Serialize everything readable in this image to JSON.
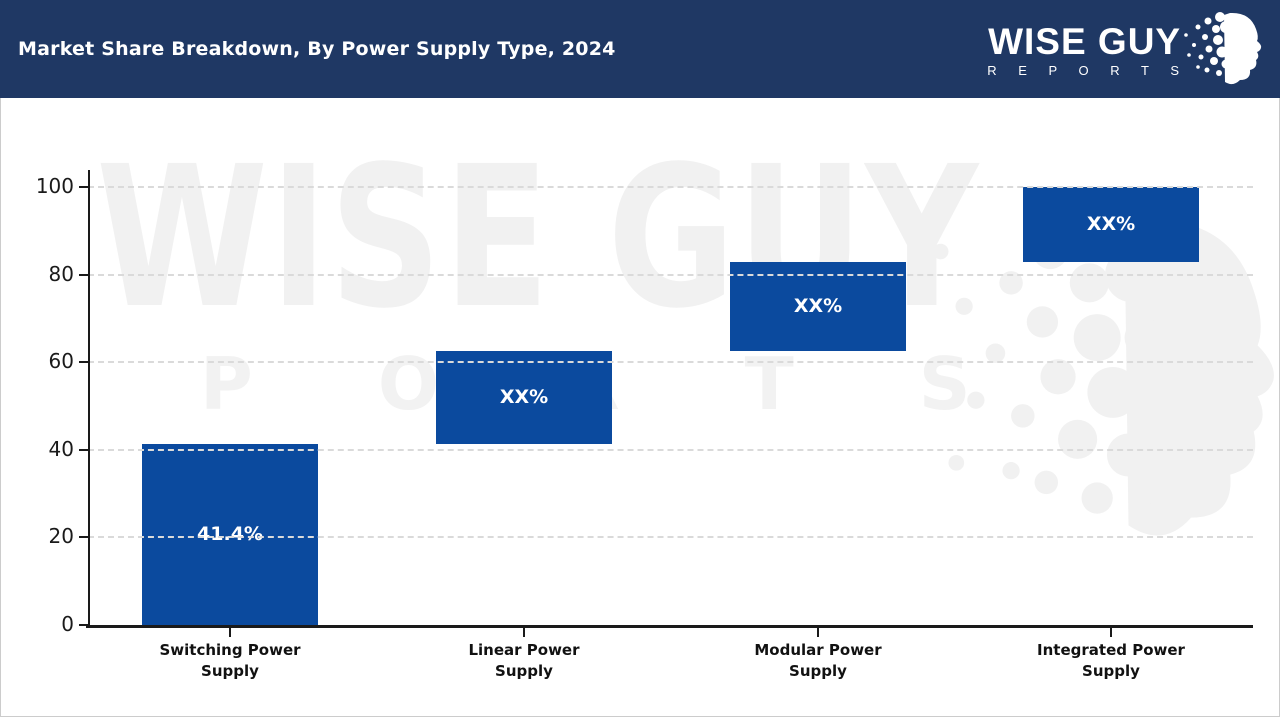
{
  "header": {
    "title": "Market Share Breakdown, By Power Supply Type, 2024",
    "bg_color": "#1f3864",
    "logo": {
      "line1": "WISE GUY",
      "line2": "R E P O R T S"
    }
  },
  "watermark": {
    "line1": "WISE GUY",
    "line2": "P O R T S"
  },
  "chart_data": {
    "type": "bar",
    "subtype": "waterfall",
    "title": "Market Share Breakdown, By Power Supply Type, 2024",
    "xlabel": "",
    "ylabel": "",
    "ylim": [
      0,
      100
    ],
    "yticks": [
      0,
      20,
      40,
      60,
      80,
      100
    ],
    "grid": "horizontal-dashed",
    "bar_color": "#0b4a9e",
    "bar_label_color": "#ffffff",
    "categories": [
      "Switching Power Supply",
      "Linear Power Supply",
      "Modular Power Supply",
      "Integrated Power Supply"
    ],
    "category_label_lines": [
      [
        "Switching Power",
        "Supply"
      ],
      [
        "Linear Power",
        "Supply"
      ],
      [
        "Modular Power",
        "Supply"
      ],
      [
        "Integrated Power",
        "Supply"
      ]
    ],
    "segments": [
      {
        "category": "Switching Power Supply",
        "start": 0,
        "end": 41.4,
        "value": 41.4,
        "label": "41.4%"
      },
      {
        "category": "Linear Power Supply",
        "start": 41.4,
        "end": 62.6,
        "value": 21.2,
        "label": "XX%"
      },
      {
        "category": "Modular Power Supply",
        "start": 62.6,
        "end": 82.9,
        "value": 20.3,
        "label": "XX%"
      },
      {
        "category": "Integrated Power Supply",
        "start": 82.9,
        "end": 100,
        "value": 17.1,
        "label": "XX%"
      }
    ]
  }
}
